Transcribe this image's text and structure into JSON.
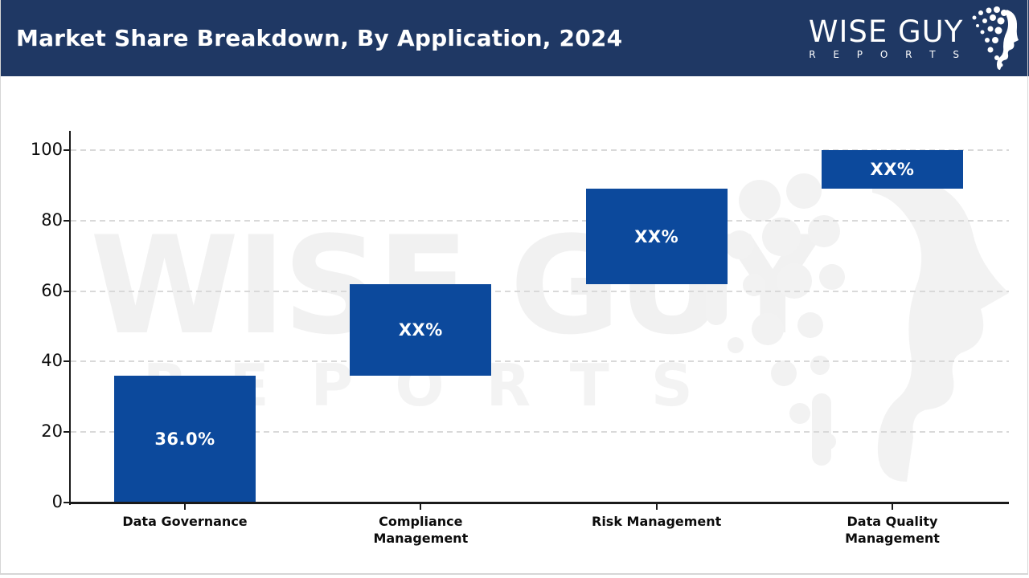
{
  "header": {
    "title": "Market Share Breakdown, By Application, 2024",
    "logo": {
      "line1": "WISE GUY",
      "line2": "REPORTS"
    }
  },
  "watermark": {
    "line1": "WISE GUY",
    "line2": "REPORTS"
  },
  "colors": {
    "header_bg": "#1f3864",
    "bar": "#0c499c",
    "bar_label": "#ffffff",
    "grid": "#d9d9d9",
    "axis": "#1a1a1a",
    "watermark": "#f1f1f1"
  },
  "chart_data": {
    "type": "bar",
    "subtype": "waterfall-floating-bars",
    "title": "Market Share Breakdown, By Application, 2024",
    "xlabel": "",
    "ylabel": "",
    "ylim": [
      0,
      100
    ],
    "yticks": [
      0,
      20,
      40,
      60,
      80,
      100
    ],
    "grid": "horizontal-dashed",
    "legend": "none",
    "categories": [
      "Data Governance",
      "Compliance Management",
      "Risk Management",
      "Data Quality Management"
    ],
    "category_label_lines": [
      [
        "Data Governance"
      ],
      [
        "Compliance",
        "Management"
      ],
      [
        "Risk Management"
      ],
      [
        "Data Quality",
        "Management"
      ]
    ],
    "segments": [
      {
        "category": "Data Governance",
        "start": 0,
        "end": 36,
        "value": 36,
        "label": "36.0%"
      },
      {
        "category": "Compliance Management",
        "start": 36,
        "end": 62,
        "value": 26,
        "label": "XX%"
      },
      {
        "category": "Risk Management",
        "start": 62,
        "end": 89,
        "value": 27,
        "label": "XX%"
      },
      {
        "category": "Data Quality Management",
        "start": 89,
        "end": 100,
        "value": 11,
        "label": "XX%"
      }
    ]
  }
}
